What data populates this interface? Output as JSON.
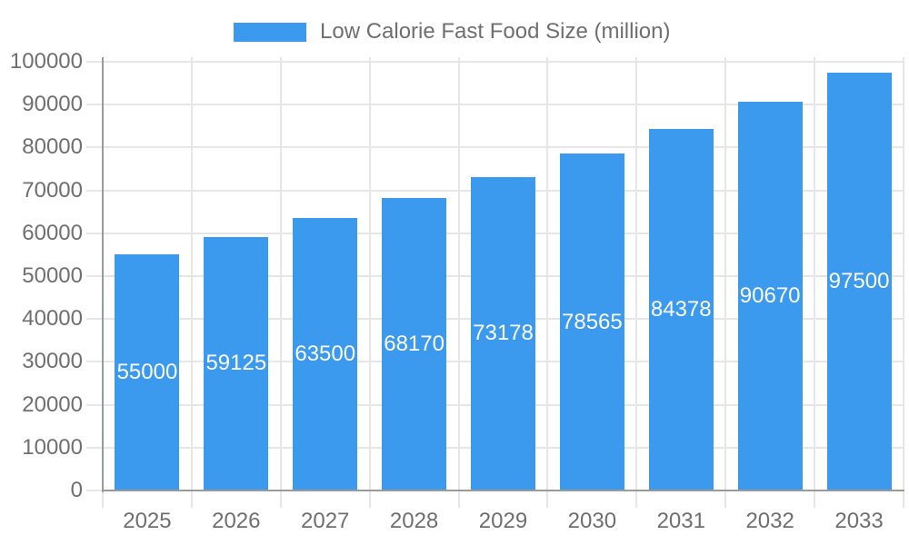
{
  "chart_data": {
    "type": "bar",
    "title": "",
    "legend_label": "Low Calorie Fast Food Size (million)",
    "legend_position": "top-center",
    "categories": [
      "2025",
      "2026",
      "2027",
      "2028",
      "2029",
      "2030",
      "2031",
      "2032",
      "2033"
    ],
    "values": [
      55000,
      59125,
      63500,
      68170,
      73178,
      78565,
      84378,
      90670,
      97500
    ],
    "bar_labels": [
      "55000",
      "59125",
      "63500",
      "68170",
      "73178",
      "78565",
      "84378",
      "90670",
      "97500"
    ],
    "xlabel": "",
    "ylabel": "",
    "ylim": [
      0,
      100000
    ],
    "yticks": [
      0,
      10000,
      20000,
      30000,
      40000,
      50000,
      60000,
      70000,
      80000,
      90000,
      100000
    ],
    "grid": true,
    "colors": {
      "bar": "#3B99EE",
      "grid": "#E6E6E6",
      "axis": "#9A9A9A",
      "tick_label": "#6F6F6F",
      "legend_text": "#6F6F6F",
      "bar_label": "#FFFFFF",
      "background": "#FFFFFF"
    }
  }
}
